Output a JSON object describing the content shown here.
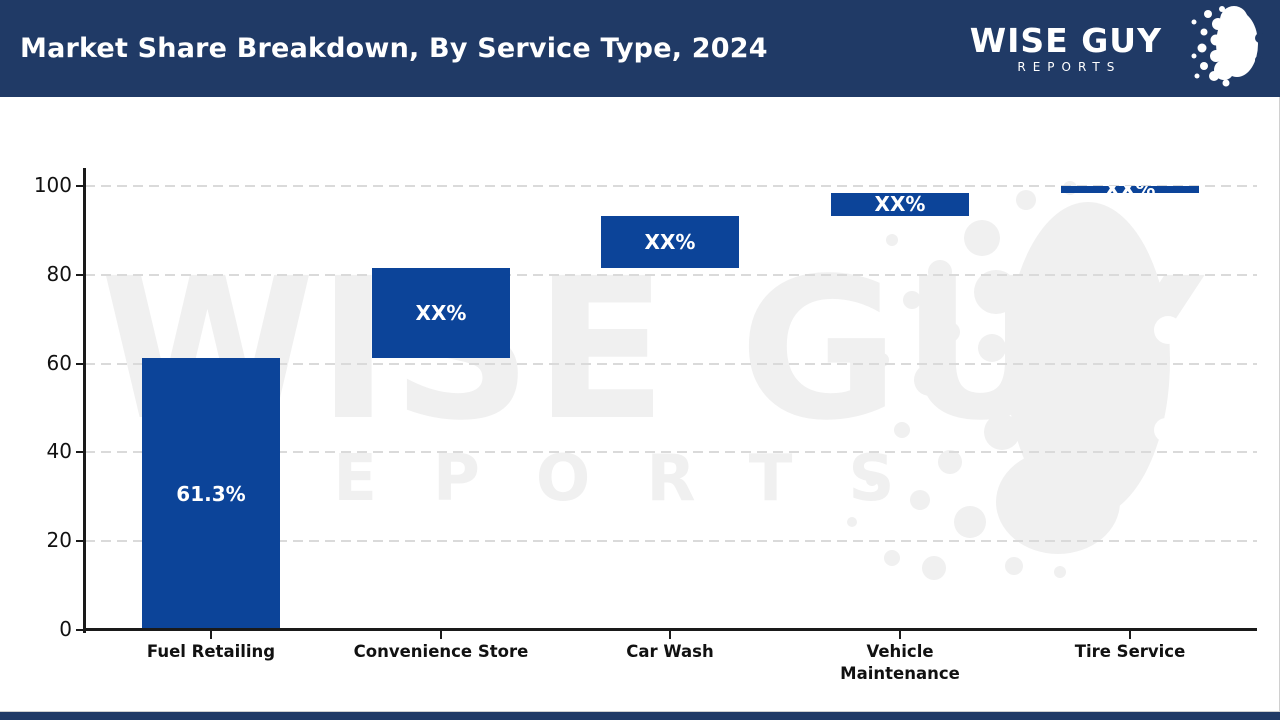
{
  "header": {
    "title": "Market Share Breakdown, By Service Type, 2024",
    "logo": {
      "line1": "WISE GUY",
      "line2": "REPORTS"
    }
  },
  "watermark": {
    "line1": "WISE GUY",
    "line2": "REPORTS"
  },
  "colors": {
    "header_bg": "#203a66",
    "bar_blue": "#0c4499",
    "gridline": "#dadada",
    "axis": "#1a1a1a",
    "watermark_gray": "#f0f0f0"
  },
  "chart_data": {
    "type": "bar",
    "subtype": "waterfall",
    "title": "Market Share Breakdown, By Service Type, 2024",
    "categories": [
      "Fuel Retailing",
      "Convenience Store",
      "Car Wash",
      "Vehicle Maintenance",
      "Tire Service"
    ],
    "category_lines": [
      [
        "Fuel Retailing"
      ],
      [
        "Convenience Store"
      ],
      [
        "Car Wash"
      ],
      [
        "Vehicle",
        "Maintenance"
      ],
      [
        "Tire Service"
      ]
    ],
    "segments": [
      {
        "category": "Fuel Retailing",
        "start": 0,
        "end": 61.3,
        "value": 61.3,
        "label": "61.3%"
      },
      {
        "category": "Convenience Store",
        "start": 61.3,
        "end": 81.5,
        "value": 20.2,
        "label": "XX%"
      },
      {
        "category": "Car Wash",
        "start": 81.5,
        "end": 93.3,
        "value": 11.8,
        "label": "XX%"
      },
      {
        "category": "Vehicle Maintenance",
        "start": 93.3,
        "end": 98.5,
        "value": 5.2,
        "label": "XX%"
      },
      {
        "category": "Tire Service",
        "start": 98.5,
        "end": 100,
        "value": 1.5,
        "label": "XX%"
      }
    ],
    "y_ticks": [
      0,
      20,
      40,
      60,
      80,
      100
    ],
    "ylim": [
      0,
      100
    ],
    "xlabel": "",
    "ylabel": "",
    "grid": "dashed-horizontal",
    "legend": "none",
    "bar_color": "#0c4499",
    "label_color": "#ffffff"
  }
}
